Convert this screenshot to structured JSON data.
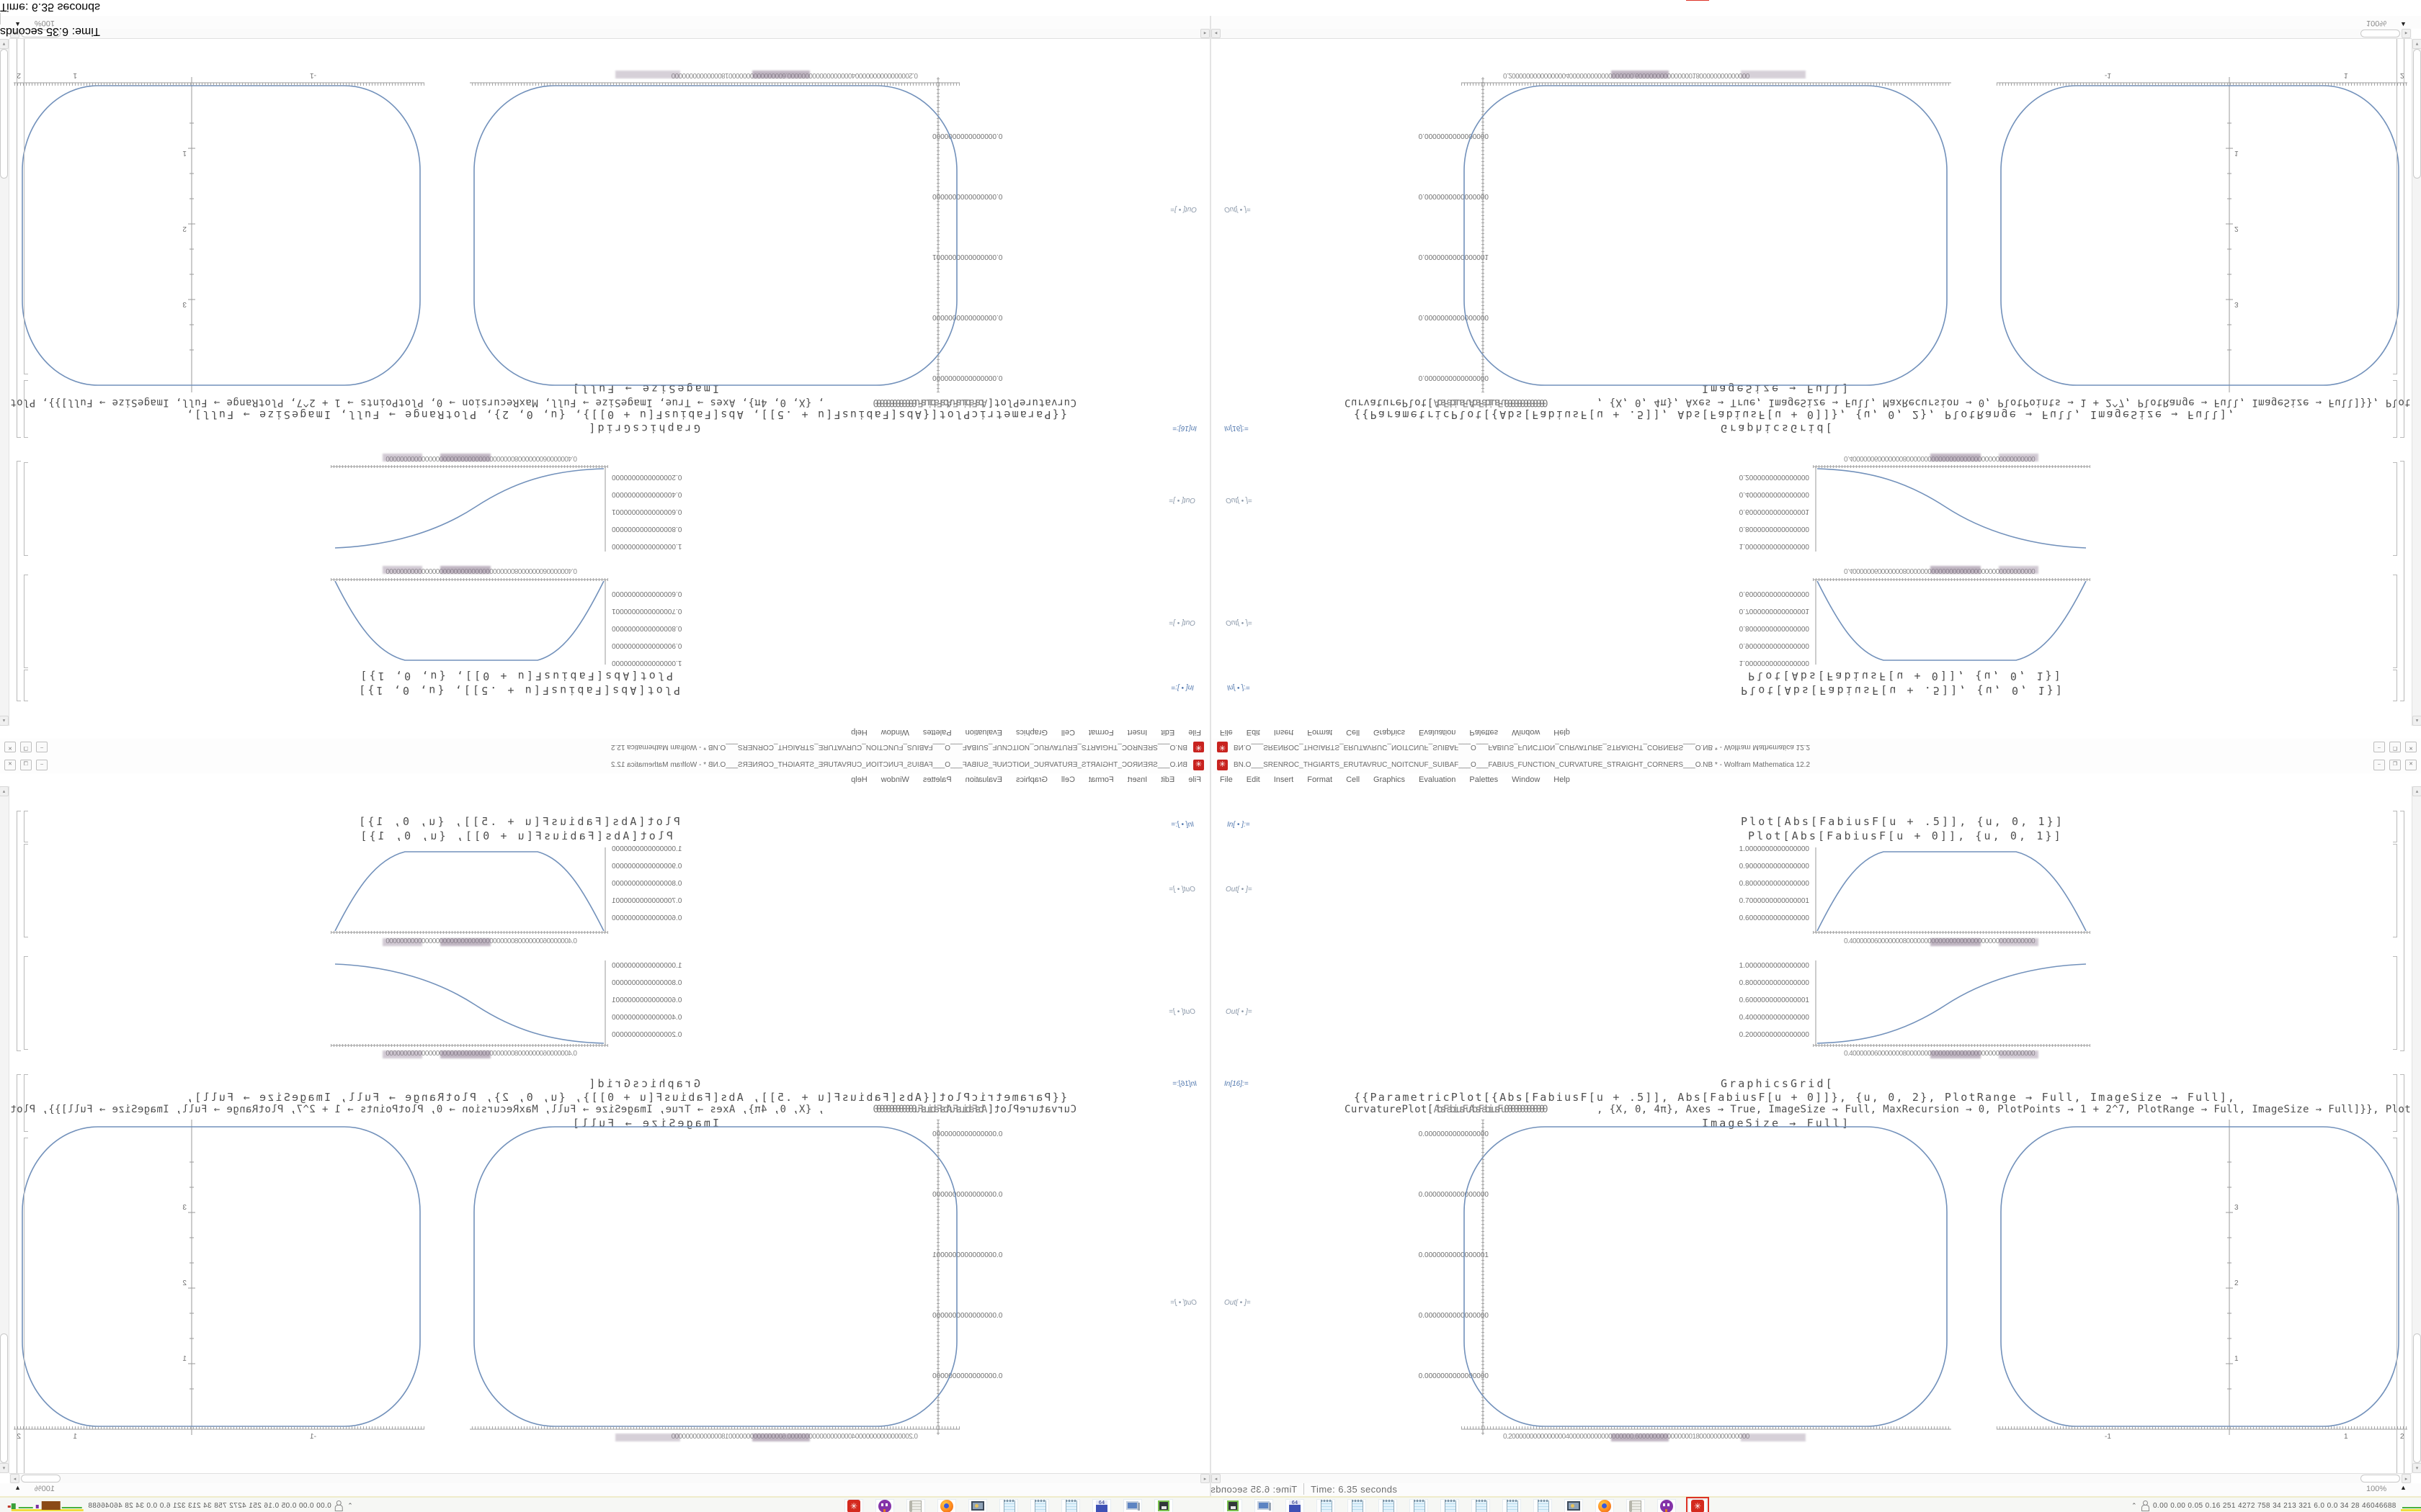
{
  "app": {
    "title": "BN.O___SRENROC_THGIARTS_ERUTAVRUC_NOITCNUF_SUIBAF___O___FABIUS_FUNCTION_CURVATURE_STRAIGHT_CORNERS___O.NB * - Wolfram Mathematica 12.2",
    "menu": [
      "File",
      "Edit",
      "Insert",
      "Format",
      "Cell",
      "Graphics",
      "Evaluation",
      "Palettes",
      "Window",
      "Help"
    ],
    "window_buttons": [
      "–",
      "❐",
      "✕"
    ],
    "app_icon_glyph": "✳"
  },
  "cells": {
    "in1_label": "In[ • ]:=",
    "code1_line1": "Plot[Abs[FabiusF[u + .5]], {u, 0, 1}]",
    "code1_line2": "Plot[Abs[FabiusF[u + 0]], {u, 0, 1}]",
    "out_small_label": "Out[ • ]=",
    "in2_label": "In[16]:=",
    "code2_line1": "GraphicsGrid[",
    "code2_line2": "{{ParametricPlot[{Abs[FabiusF[u + .5]], Abs[FabiusF[u + 0]]}, {u, 0, 2}, PlotRange → Full, ImageSize → Full],",
    "code2_line3a": "CurvaturePlot[",
    "code2_line3b": "AbsFabiusFuAbsFabiusFu0000000000000",
    "code2_line3c": ", {X, 0, 4π}, Axes → True, ImageSize → Full, MaxRecursion → 0, PlotPoints → 1 + 2^7, PlotRange → Full, ImageSize → Full]}}, PlotRange → Full,",
    "code2_line4": "ImageSize → Full]",
    "out_big_label": "Out[ • ]="
  },
  "plots": {
    "small1": {
      "ylabels": [
        "1.0000000000000000",
        "0.9000000000000000",
        "0.8000000000000000",
        "0.7000000000000001",
        "0.6000000000000000"
      ],
      "xgarble": "0.4000000600000008000000000000000000000000000000000000"
    },
    "small2": {
      "ylabels": [
        "1.0000000000000000",
        "0.8000000000000000",
        "0.6000000000000001",
        "0.4000000000000000",
        "0.2000000000000000"
      ],
      "xgarble": "0.4000000600000008000000000000000000000000000000000000"
    },
    "bigleft": {
      "ylabels": [
        "0.0000000000000000",
        "0.0000000000000000",
        "0.0000000000000001",
        "0.0000000000000000",
        "0.0000000000000000"
      ],
      "xgarble": "0.20000000000000004000000000000000000.60000000000000001800000000000000"
    },
    "bigright": {
      "yticks": [
        "3",
        "2",
        "1"
      ],
      "xticks": [
        "-1",
        "1",
        "2"
      ]
    }
  },
  "statusbar": {
    "time": "Time: 6.35 seconds",
    "zoom": "100%",
    "zoom_arrow": "▲"
  },
  "taskbar": {
    "left_icons": [
      "gear",
      "purple",
      "scroll",
      "firefox",
      "photo",
      "notepad",
      "notepad",
      "notepad",
      "floppy64",
      "monitor",
      "zip"
    ],
    "right_icons": [
      "zip",
      "monitor",
      "floppy64",
      "notepad",
      "notepad",
      "notepad",
      "notepad",
      "notepad",
      "notepad",
      "notepad",
      "notepad",
      "photo",
      "firefox",
      "scroll",
      "purple",
      "gear-active"
    ],
    "tray_numbers": "0.00 0.00 0.05 0.16 251 4272 758  34  213  321  6.0  0.0  34  28 46046688",
    "tray_expander": "⌃"
  },
  "scroll": {
    "up": "▴",
    "down": "▾",
    "left": "◂",
    "right": "▸"
  }
}
